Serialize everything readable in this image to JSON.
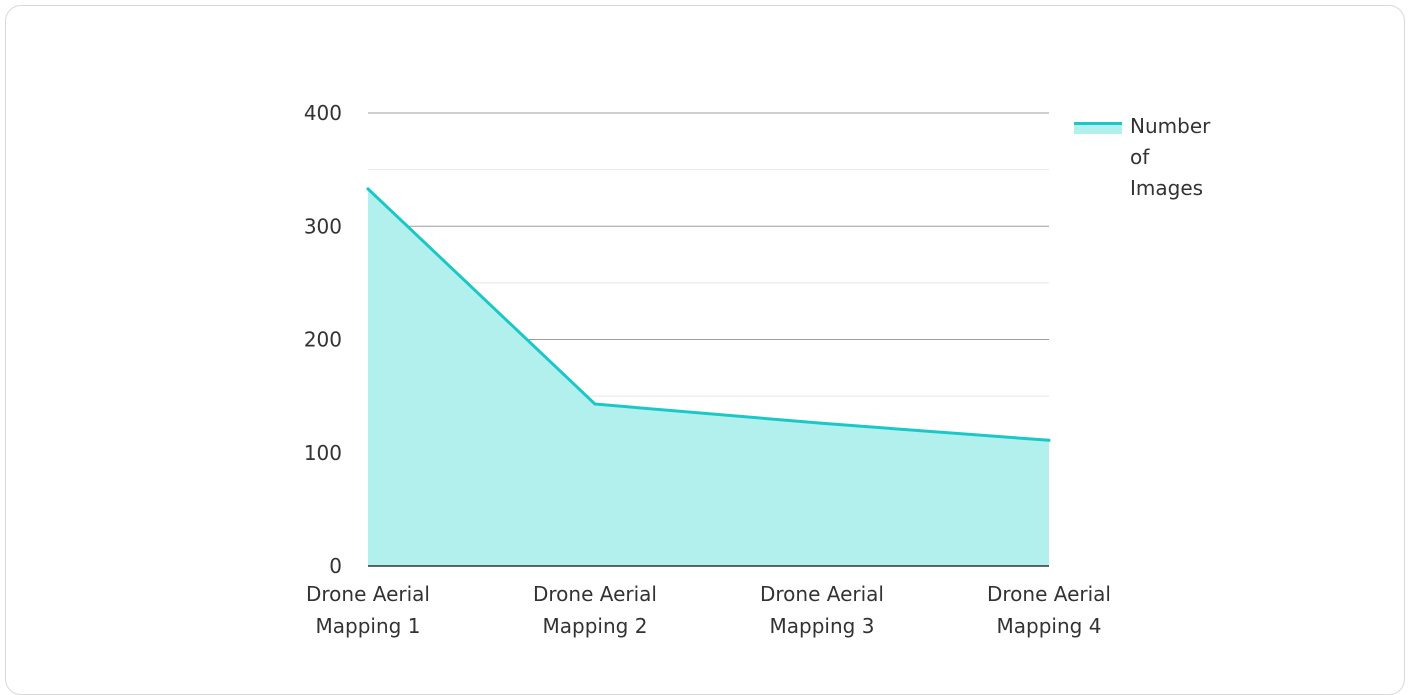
{
  "chart_data": {
    "type": "area",
    "categories": [
      "Drone Aerial Mapping 1",
      "Drone Aerial Mapping 2",
      "Drone Aerial Mapping 3",
      "Drone Aerial Mapping 4"
    ],
    "category_lines": [
      [
        "Drone Aerial",
        "Mapping 1"
      ],
      [
        "Drone Aerial",
        "Mapping 2"
      ],
      [
        "Drone Aerial",
        "Mapping 3"
      ],
      [
        "Drone Aerial",
        "Mapping 4"
      ]
    ],
    "series": [
      {
        "name": "Number of Images",
        "values": [
          333,
          143,
          126,
          111
        ]
      }
    ],
    "ylim": [
      0,
      400
    ],
    "yticks": [
      0,
      100,
      200,
      300,
      400
    ],
    "grid": true,
    "legend_position": "top-right",
    "colors": {
      "line": "#1cc7c7",
      "fill": "#b2f0ee",
      "grid_major": "#9e9e9e",
      "grid_minor": "#e6e6e6",
      "axis": "#333333"
    }
  }
}
